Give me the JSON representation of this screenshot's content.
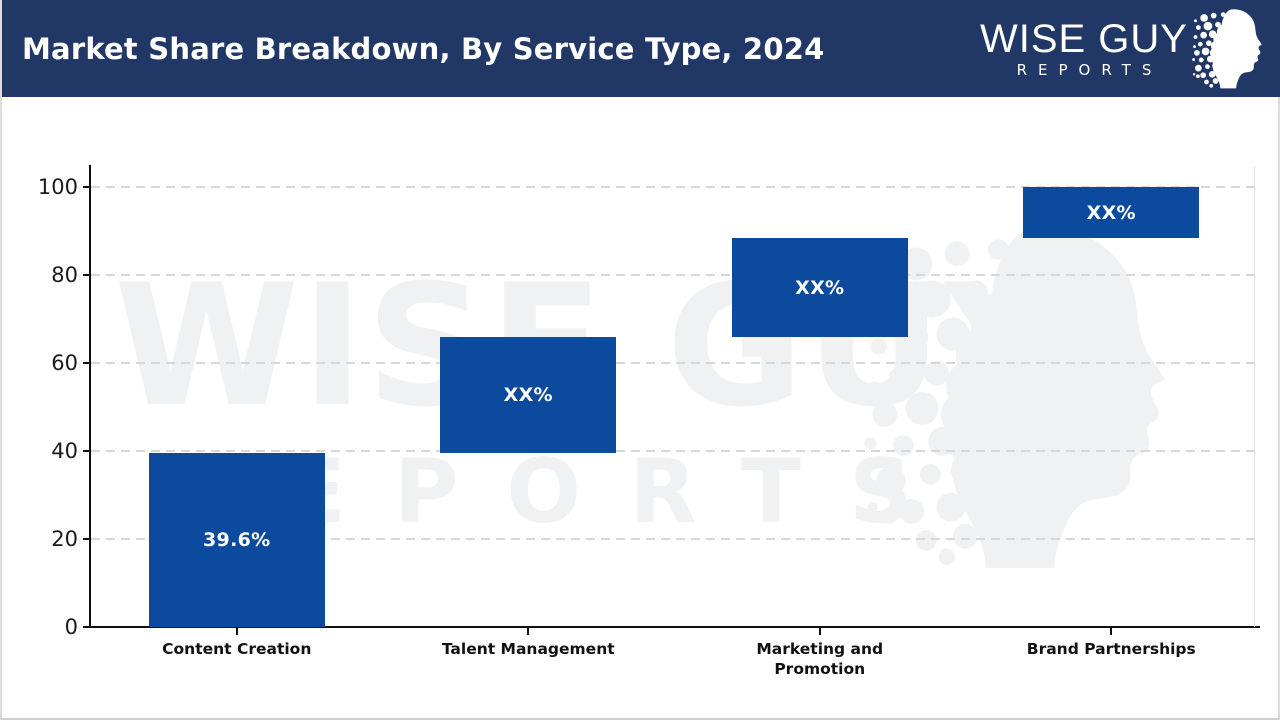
{
  "header": {
    "title": "Market Share Breakdown, By Service Type, 2024",
    "brand": {
      "line1": "WISE GUY",
      "line2": "REPORTS"
    }
  },
  "watermark": {
    "line1": "WISE GUY",
    "line2": "REPORTS"
  },
  "chart_data": {
    "type": "bar",
    "subtype": "waterfall",
    "title": "Market Share Breakdown, By Service Type, 2024",
    "categories": [
      "Content Creation",
      "Talent Management",
      "Marketing and Promotion",
      "Brand Partnerships"
    ],
    "bars": [
      {
        "category": "Content Creation",
        "start": 0,
        "end": 39.6,
        "label": "39.6%"
      },
      {
        "category": "Talent Management",
        "start": 39.6,
        "end": 65.9,
        "label": "XX%"
      },
      {
        "category": "Marketing and Promotion",
        "start": 65.9,
        "end": 88.3,
        "label": "XX%"
      },
      {
        "category": "Brand Partnerships",
        "start": 88.3,
        "end": 100,
        "label": "XX%"
      }
    ],
    "ylim": [
      0,
      100
    ],
    "yticks": [
      0,
      20,
      40,
      60,
      80,
      100
    ],
    "grid": "dashed horizontal, light gray",
    "legend": "none",
    "xlabel": "",
    "ylabel": ""
  },
  "colors": {
    "header_bg": "#213765",
    "bar": "#0c4a9e",
    "bar_label": "#ffffff",
    "grid": "#d7d7d7",
    "axis": "#111111",
    "watermark": "#f0f1f3"
  }
}
